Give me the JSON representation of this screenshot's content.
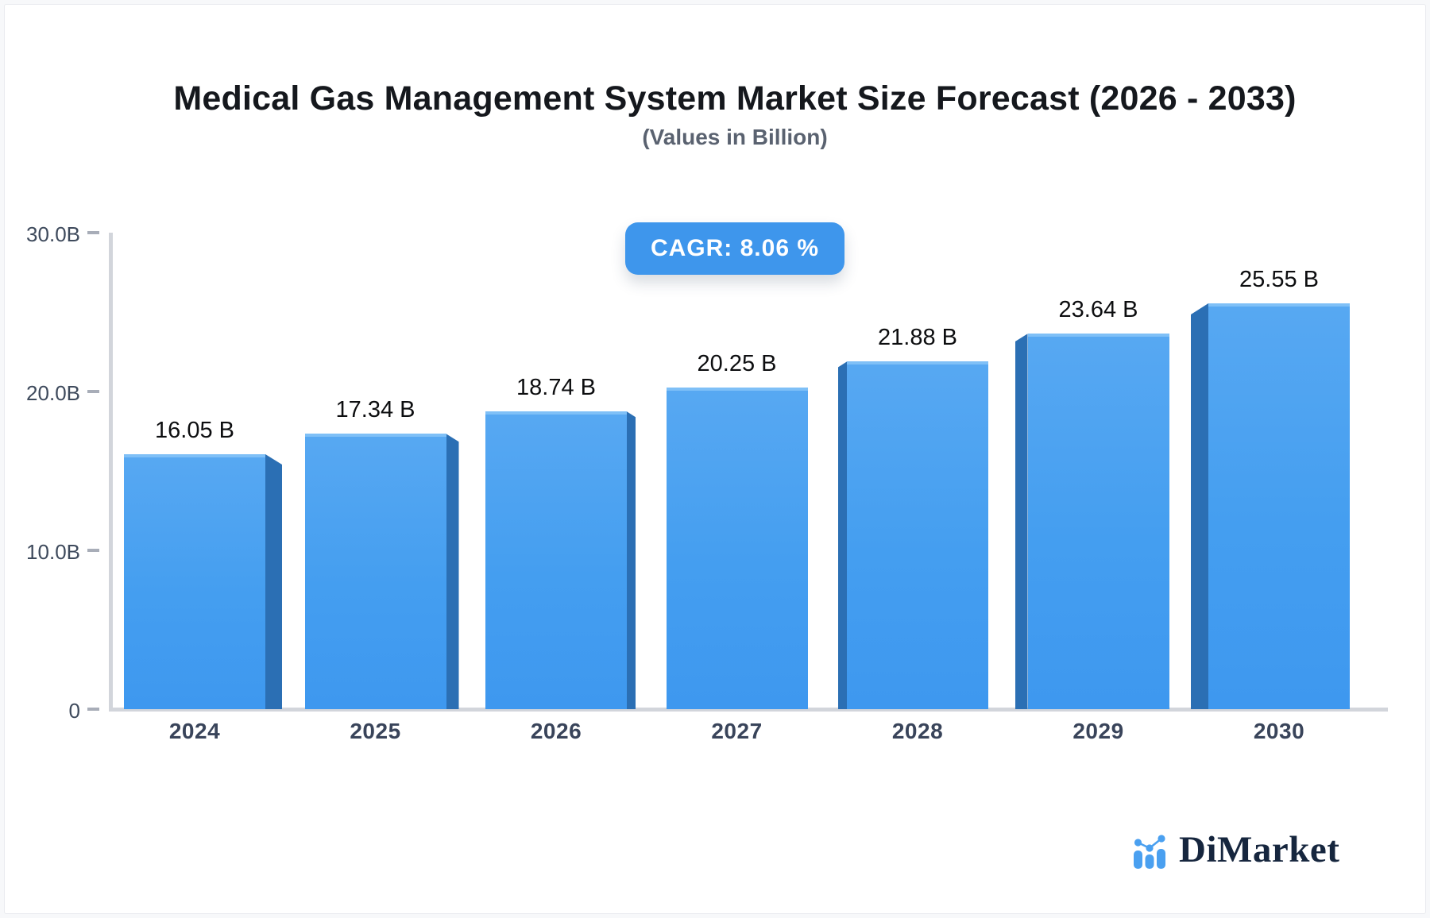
{
  "header": {
    "title": "Medical Gas Management System Market Size Forecast (2026 - 2033)",
    "subtitle": "(Values in Billion)",
    "cagr_badge": "CAGR: 8.06 %"
  },
  "chart_data": {
    "type": "bar",
    "title": "Medical Gas Management System Market Size Forecast (2026 - 2033)",
    "subtitle": "(Values in Billion)",
    "cagr_percent": 8.06,
    "categories": [
      "2024",
      "2025",
      "2026",
      "2027",
      "2028",
      "2029",
      "2030"
    ],
    "values": [
      16.05,
      17.34,
      18.74,
      20.25,
      21.88,
      23.64,
      25.55
    ],
    "value_labels": [
      "16.05 B",
      "17.34 B",
      "18.74 B",
      "20.25 B",
      "21.88 B",
      "23.64 B",
      "25.55 B"
    ],
    "unit": "Billion",
    "y_axis": {
      "ticks": [
        {
          "label": "30.0B",
          "value": 30
        },
        {
          "label": "20.0B",
          "value": 20
        },
        {
          "label": "10.0B",
          "value": 10
        },
        {
          "label": "0",
          "value": 0
        }
      ],
      "ylim": [
        0,
        30
      ],
      "grid": false
    },
    "legend_position": "none",
    "bar_color": "#3e98ef",
    "bar_side_color": "#2b6fb4",
    "badge_color": "#3e96ec"
  },
  "watermark": {
    "brand": "DiMarket"
  }
}
